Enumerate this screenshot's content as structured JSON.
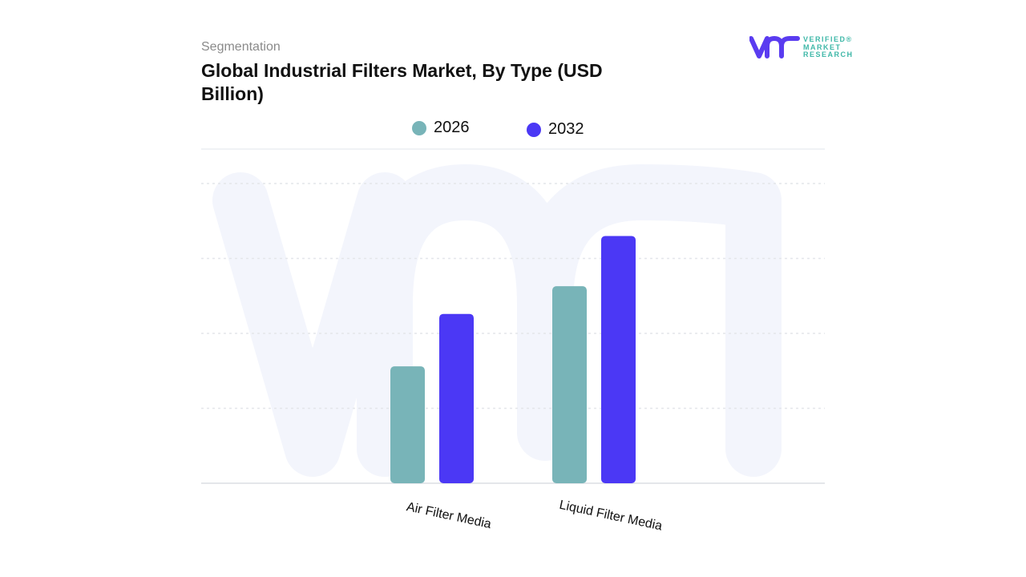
{
  "header": {
    "subtitle": "Segmentation",
    "title": "Global Industrial Filters Market, By Type (USD Billion)"
  },
  "logo": {
    "text": "VERIFIED MARKET RESEARCH",
    "color": "#5a3cf0",
    "text_color": "#3fb8a8"
  },
  "chart_data": {
    "type": "bar",
    "title": "Global Industrial Filters Market, By Type (USD Billion)",
    "categories": [
      "Air Filter Media",
      "Liquid Filter Media"
    ],
    "series": [
      {
        "name": "2026",
        "color": "#78b4b8",
        "values": [
          1.56,
          2.63
        ]
      },
      {
        "name": "2032",
        "color": "#4b38f5",
        "values": [
          2.26,
          3.3
        ]
      }
    ],
    "ylim": [
      0,
      4.46
    ],
    "grid": true,
    "y_tick_labels_shown": false,
    "legend_position": "top-center",
    "xlabel": "",
    "ylabel": ""
  }
}
